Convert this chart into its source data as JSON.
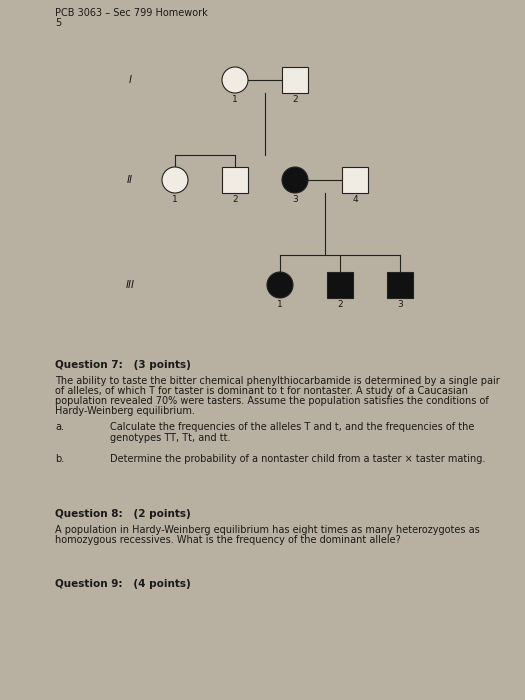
{
  "bg_color": "#b8b0a0",
  "title_line1": "PCB 3063 – Sec 799 Homework",
  "title_line2": "5",
  "q7_header": "Question 7:   (3 points)",
  "q7_body1": "The ability to taste the bitter chemical phenylthiocarbamide is determined by a single pair",
  "q7_body2": "of alleles, of which T for taster is dominant to t for nontaster. A study of a Caucasian",
  "q7_body3": "population revealed 70% were tasters. Assume the population satisfies the conditions of",
  "q7_body4": "Hardy-Weinberg equilibrium.",
  "q7a_label": "a.",
  "q7a_text1": "Calculate the frequencies of the alleles T and t, and the frequencies of the",
  "q7a_text2": "genotypes TT, Tt, and tt.",
  "q7b_label": "b.",
  "q7b_text": "Determine the probability of a nontaster child from a taster × taster mating.",
  "q8_header": "Question 8:   (2 points)",
  "q8_body1": "A population in Hardy-Weinberg equilibrium has eight times as many heterozygotes as",
  "q8_body2": "homozygous recessives. What is the frequency of the dominant allele?",
  "q9_header": "Question 9:   (4 points)",
  "text_color": "#1a1a1a",
  "pedigree_fill_affected": "#111111",
  "pedigree_fill_unaffected": "#f0ece4",
  "pedigree_edge_color": "#222222",
  "lw": 0.8
}
